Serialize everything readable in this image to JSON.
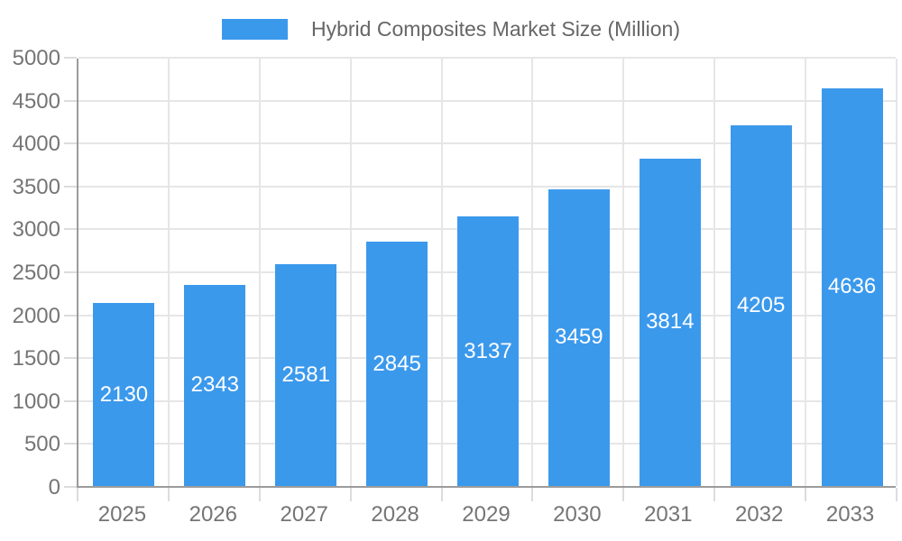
{
  "chart_data": {
    "type": "bar",
    "title": "Hybrid Composites Market Size (Million)",
    "legend": {
      "label": "Hybrid Composites Market Size (Million)"
    },
    "categories": [
      "2025",
      "2026",
      "2027",
      "2028",
      "2029",
      "2030",
      "2031",
      "2032",
      "2033"
    ],
    "series": [
      {
        "name": "Hybrid Composites Market Size (Million)",
        "values": [
          2130,
          2343,
          2581,
          2845,
          3137,
          3459,
          3814,
          4205,
          4636
        ]
      }
    ],
    "value_labels": [
      "2130",
      "2343",
      "2581",
      "2845",
      "3137",
      "3459",
      "3814",
      "4205",
      "4636"
    ],
    "xlabel": "",
    "ylabel": "",
    "ylim": [
      0,
      5000
    ],
    "yticks": [
      0,
      500,
      1000,
      1500,
      2000,
      2500,
      3000,
      3500,
      4000,
      4500,
      5000
    ],
    "grid": "on",
    "legend_position": "top-center",
    "colors": {
      "bar": "#3B99EC",
      "value_label": "#FFFFFF",
      "grid": "#E6E6E6",
      "axis": "#9B9B9B",
      "tick": "#DCDCDC",
      "axis_label": "#757575",
      "legend_text": "#666666",
      "background": "#FFFFFF"
    }
  }
}
